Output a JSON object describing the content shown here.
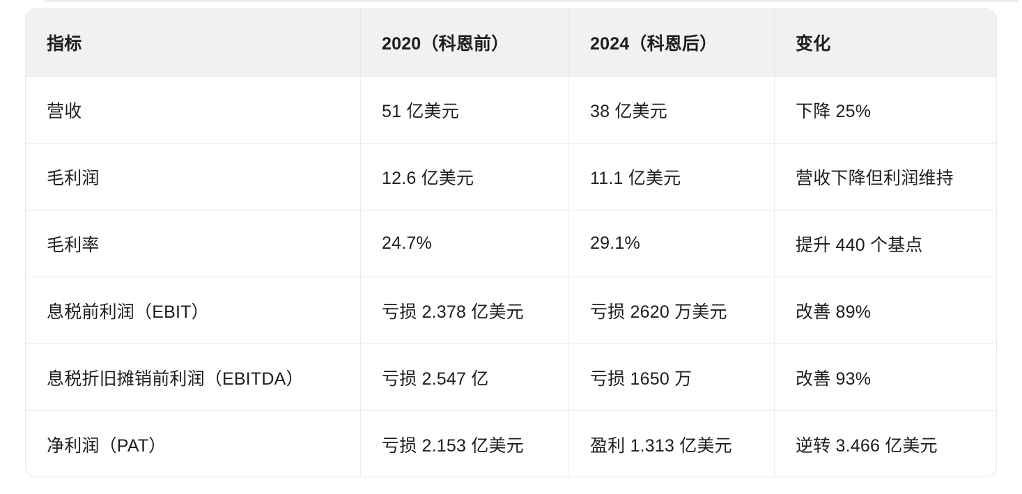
{
  "table": {
    "columns": [
      "指标",
      "2020（科恩前）",
      "2024（科恩后）",
      "变化"
    ],
    "rows": [
      [
        "营收",
        "51 亿美元",
        "38 亿美元",
        "下降 25%"
      ],
      [
        "毛利润",
        "12.6 亿美元",
        "11.1 亿美元",
        "营收下降但利润维持"
      ],
      [
        "毛利率",
        "24.7%",
        "29.1%",
        "提升 440 个基点"
      ],
      [
        "息税前利润（EBIT）",
        "亏损 2.378 亿美元",
        "亏损 2620 万美元",
        "改善 89%"
      ],
      [
        "息税折旧摊销前利润（EBITDA）",
        "亏损 2.547 亿",
        "亏损 1650 万",
        "改善 93%"
      ],
      [
        "净利润（PAT）",
        "亏损 2.153 亿美元",
        "盈利 1.313 亿美元",
        "逆转 3.466 亿美元"
      ]
    ],
    "colors": {
      "header_bg": "#f1f1ef",
      "row_divider": "#e9e9e7",
      "col_divider": "#ececea",
      "text": "#1d1d1d",
      "card_border": "#e9e9e7",
      "page_bg": "#ffffff"
    }
  }
}
